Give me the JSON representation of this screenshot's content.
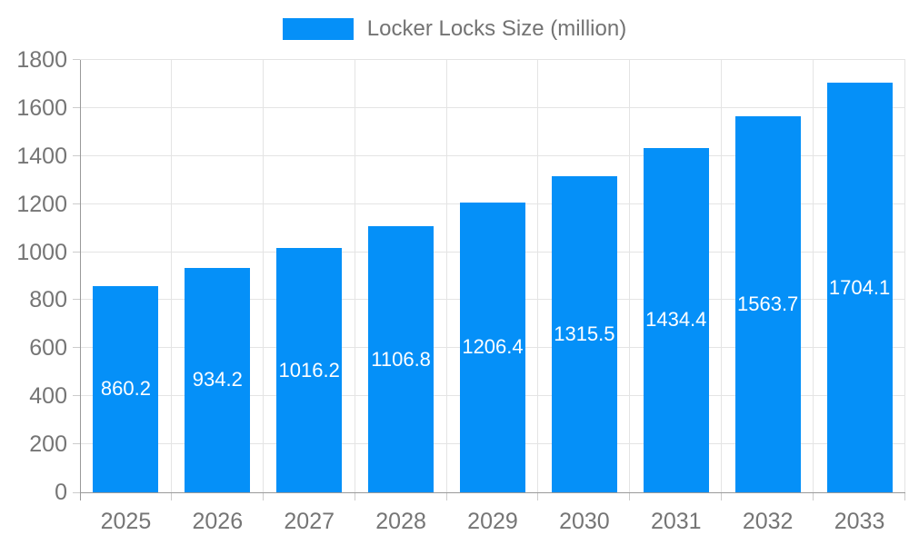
{
  "legend": {
    "label": "Locker Locks Size (million)"
  },
  "chart_data": {
    "type": "bar",
    "title": "Locker Locks Size (million)",
    "categories": [
      "2025",
      "2026",
      "2027",
      "2028",
      "2029",
      "2030",
      "2031",
      "2032",
      "2033"
    ],
    "series": [
      {
        "name": "Locker Locks Size (million)",
        "values": [
          860.2,
          934.2,
          1016.2,
          1106.8,
          1206.4,
          1315.5,
          1434.4,
          1563.7,
          1704.1
        ]
      }
    ],
    "value_labels": [
      "860.2",
      "934.2",
      "1016.2",
      "1106.8",
      "1206.4",
      "1315.5",
      "1434.4",
      "1563.7",
      "1704.1"
    ],
    "xlabel": "",
    "ylabel": "",
    "ylim": [
      0,
      1800
    ],
    "ytick_interval": 200,
    "ytick_labels": [
      "0",
      "200",
      "400",
      "600",
      "800",
      "1000",
      "1200",
      "1400",
      "1600",
      "1800"
    ],
    "grid": true,
    "legend_position": "top-center",
    "colors": {
      "bar": "#0590f8",
      "value_label_text": "#ffffff",
      "axis_line": "#999999",
      "tick_mark": "#cccccc",
      "gridline": "#e4e4e4",
      "axis_text": "#757575",
      "background": "#ffffff"
    }
  }
}
